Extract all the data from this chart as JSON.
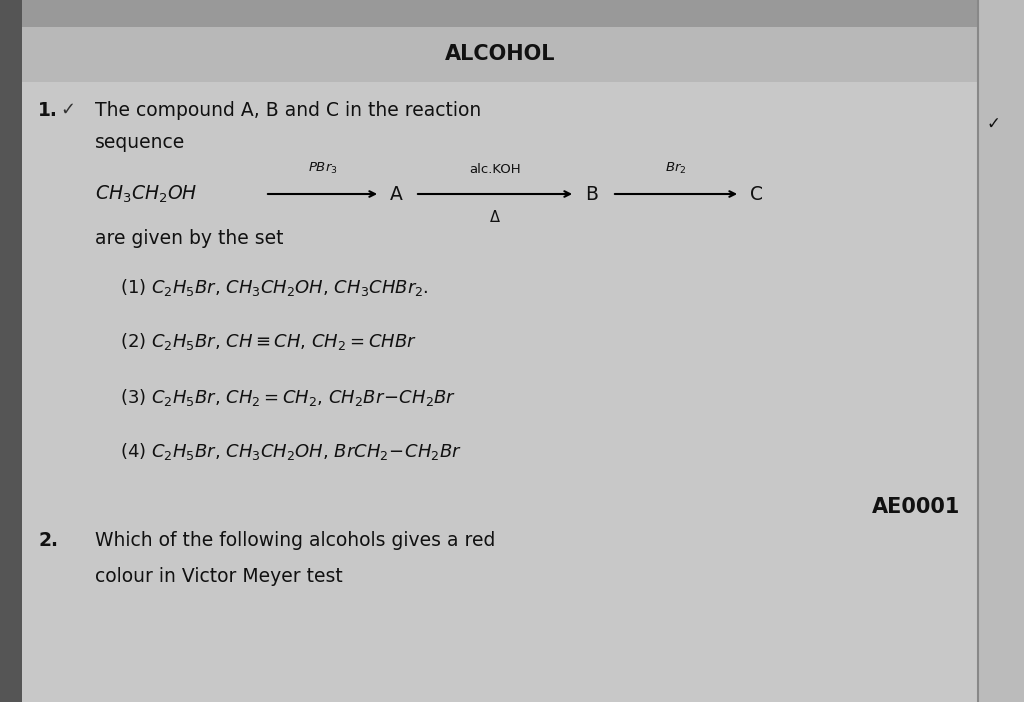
{
  "title": "ALCOHOL",
  "title_bg": "#b8b8b8",
  "page_bg": "#c8c8c8",
  "content_bg": "#d2d2d2",
  "spine_color": "#555555",
  "right_col_bg": "#bbbbbb",
  "font_color": "#111111",
  "header_font_size": 15,
  "body_font_size": 13.5,
  "option_font_size": 13,
  "reagent_font_size": 9.5,
  "q1_number": "1.",
  "q1_line1": "The compound A, B and C in the reaction",
  "q1_line2": "sequence",
  "after_rxn": "are given by the set",
  "code": "AE0001",
  "q2_line1": "Which of the following alcohols gives a red",
  "q2_line2": "colour in Victor Meyer test"
}
